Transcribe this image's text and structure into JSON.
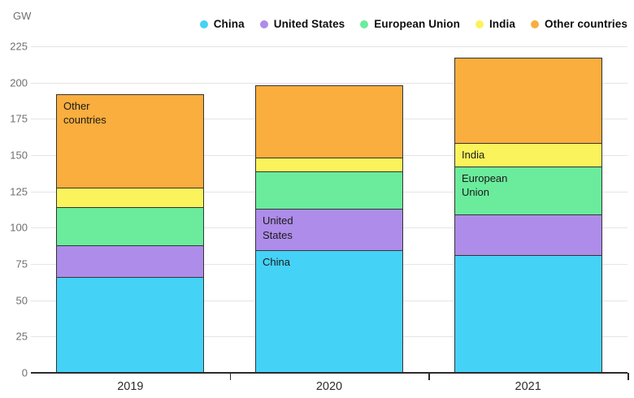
{
  "unit_label": "GW",
  "chart_data": {
    "type": "bar",
    "stacked": true,
    "title": "",
    "xlabel": "",
    "ylabel": "GW",
    "ylim": [
      0,
      225
    ],
    "ytick_step": 25,
    "grid": true,
    "legend_position": "top-right",
    "categories": [
      "2019",
      "2020",
      "2021"
    ],
    "series": [
      {
        "name": "China",
        "color": "#45d2f7",
        "values": [
          66,
          85,
          81
        ]
      },
      {
        "name": "United States",
        "color": "#ae8ce9",
        "values": [
          22,
          28,
          28
        ]
      },
      {
        "name": "European Union",
        "color": "#6aec9c",
        "values": [
          26,
          26,
          33
        ]
      },
      {
        "name": "India",
        "color": "#fbf35b",
        "values": [
          13,
          9,
          16
        ]
      },
      {
        "name": "Other countries",
        "color": "#f9ae3e",
        "values": [
          65,
          50,
          59
        ]
      }
    ],
    "totals": [
      192,
      198,
      217
    ],
    "segment_labels": [
      {
        "category": "2019",
        "series": "Other countries",
        "text": "Other\ncountries"
      },
      {
        "category": "2020",
        "series": "United States",
        "text": "United\nStates"
      },
      {
        "category": "2020",
        "series": "China",
        "text": "China"
      },
      {
        "category": "2021",
        "series": "India",
        "text": "India"
      },
      {
        "category": "2021",
        "series": "European Union",
        "text": "European\nUnion"
      }
    ]
  }
}
